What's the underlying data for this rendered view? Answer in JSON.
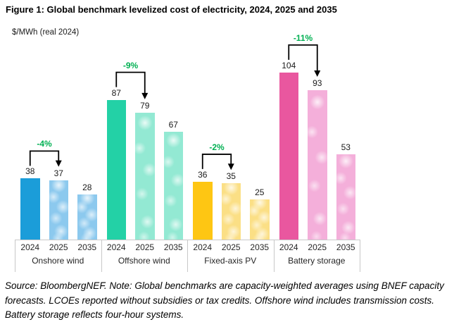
{
  "figure": {
    "title": "Figure 1: Global benchmark levelized cost of electricity, 2024, 2025 and 2035",
    "unit_label": "$/MWh (real 2024)",
    "source_note": "Source: BloombergNEF. Note: Global benchmarks are capacity-weighted averages using BNEF capacity forecasts. LCOEs reported without subsidies or tax credits. Offshore wind includes transmission costs. Battery storage reflects four-hour systems."
  },
  "chart_data": {
    "type": "bar",
    "title": "Figure 1: Global benchmark levelized cost of electricity, 2024, 2025 and 2035",
    "ylabel": "$/MWh (real 2024)",
    "xlabel": "",
    "categories": [
      "2024",
      "2025",
      "2035"
    ],
    "groups": [
      {
        "name": "Onshore wind",
        "values": [
          38,
          37,
          28
        ],
        "change_2024_to_2025": "-4%",
        "color_solid": "#1B9DD9",
        "color_light": "#8CC9EE"
      },
      {
        "name": "Offshore wind",
        "values": [
          87,
          79,
          67
        ],
        "change_2024_to_2025": "-9%",
        "color_solid": "#23D1A6",
        "color_light": "#93E9D3"
      },
      {
        "name": "Fixed-axis PV",
        "values": [
          36,
          35,
          25
        ],
        "change_2024_to_2025": "-2%",
        "color_solid": "#FEC613",
        "color_light": "#FBDF85"
      },
      {
        "name": "Battery storage",
        "values": [
          104,
          93,
          53
        ],
        "change_2024_to_2025": "-11%",
        "color_solid": "#E9579F",
        "color_light": "#F4AFDA"
      }
    ],
    "ylim": [
      0,
      110
    ],
    "grid": false,
    "legend": "none",
    "annotation_color": "#00B052",
    "axis_color": "#C8C8C8",
    "bar_fill_note": "2024 bars solid color; 2025 and 2035 bars light textured fill"
  }
}
